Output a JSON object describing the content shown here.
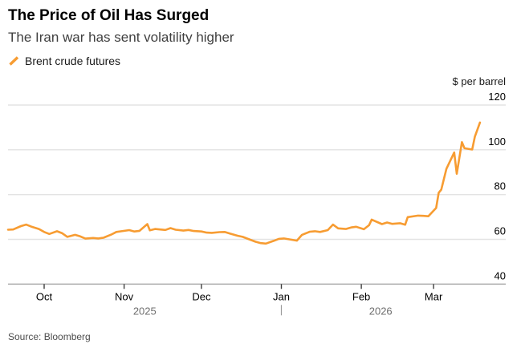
{
  "header": {
    "title": "The Price of Oil Has Surged",
    "subtitle": "The Iran war has sent volatility higher",
    "legend_label": "Brent crude futures"
  },
  "footer": {
    "source": "Source: Bloomberg"
  },
  "chart_data": {
    "type": "line",
    "title": "The Price of Oil Has Surged",
    "subtitle": "The Iran war has sent volatility higher",
    "unit_label": "$ per barrel",
    "ylim": [
      40,
      120
    ],
    "y_ticks": [
      40,
      60,
      80,
      100,
      120
    ],
    "grid": "horizontal",
    "legend_position": "top-left",
    "x_range": [
      "2025-09-17",
      "2026-03-29"
    ],
    "x_ticks": [
      {
        "label": "Oct",
        "date": "2025-10-01"
      },
      {
        "label": "Nov",
        "date": "2025-11-01"
      },
      {
        "label": "Dec",
        "date": "2025-12-01"
      },
      {
        "label": "Jan",
        "date": "2026-01-01"
      },
      {
        "label": "Feb",
        "date": "2026-02-01"
      },
      {
        "label": "Mar",
        "date": "2026-03-01"
      }
    ],
    "year_labels": [
      {
        "label": "2025",
        "from": "2025-09-17",
        "to": "2026-01-01"
      },
      {
        "label": "2026",
        "from": "2026-01-01",
        "to": "2026-03-19"
      }
    ],
    "year_divider_date": "2026-01-01",
    "colors": {
      "line": "#F79C32",
      "grid": "#E3E3E3",
      "axis": "#A9A9A9",
      "tick": "#3C3C3C",
      "tick_label": "#000000",
      "year_label": "#6F6F6F",
      "year_divider": "#9B9B9B"
    },
    "series": [
      {
        "name": "Brent crude futures",
        "color": "#F79C32",
        "points": [
          [
            "2025-09-17",
            64.3
          ],
          [
            "2025-09-19",
            64.4
          ],
          [
            "2025-09-22",
            65.9
          ],
          [
            "2025-09-24",
            66.6
          ],
          [
            "2025-09-26",
            65.7
          ],
          [
            "2025-09-29",
            64.6
          ],
          [
            "2025-10-01",
            63.3
          ],
          [
            "2025-10-03",
            62.4
          ],
          [
            "2025-10-06",
            63.6
          ],
          [
            "2025-10-08",
            62.7
          ],
          [
            "2025-10-10",
            61.1
          ],
          [
            "2025-10-13",
            62.0
          ],
          [
            "2025-10-15",
            61.3
          ],
          [
            "2025-10-17",
            60.3
          ],
          [
            "2025-10-20",
            60.6
          ],
          [
            "2025-10-22",
            60.4
          ],
          [
            "2025-10-24",
            60.7
          ],
          [
            "2025-10-27",
            62.1
          ],
          [
            "2025-10-29",
            63.3
          ],
          [
            "2025-10-31",
            63.6
          ],
          [
            "2025-11-03",
            64.1
          ],
          [
            "2025-11-05",
            63.5
          ],
          [
            "2025-11-07",
            63.8
          ],
          [
            "2025-11-10",
            66.8
          ],
          [
            "2025-11-11",
            64.0
          ],
          [
            "2025-11-13",
            64.6
          ],
          [
            "2025-11-17",
            64.2
          ],
          [
            "2025-11-19",
            65.0
          ],
          [
            "2025-11-21",
            64.3
          ],
          [
            "2025-11-24",
            63.9
          ],
          [
            "2025-11-26",
            64.2
          ],
          [
            "2025-11-28",
            63.7
          ],
          [
            "2025-12-01",
            63.5
          ],
          [
            "2025-12-03",
            63.0
          ],
          [
            "2025-12-05",
            62.9
          ],
          [
            "2025-12-08",
            63.2
          ],
          [
            "2025-12-10",
            63.3
          ],
          [
            "2025-12-12",
            62.6
          ],
          [
            "2025-12-15",
            61.6
          ],
          [
            "2025-12-17",
            61.1
          ],
          [
            "2025-12-19",
            60.2
          ],
          [
            "2025-12-22",
            58.9
          ],
          [
            "2025-12-24",
            58.3
          ],
          [
            "2025-12-26",
            58.1
          ],
          [
            "2025-12-29",
            59.3
          ],
          [
            "2025-12-31",
            60.2
          ],
          [
            "2026-01-02",
            60.4
          ],
          [
            "2026-01-05",
            59.8
          ],
          [
            "2026-01-07",
            59.4
          ],
          [
            "2026-01-09",
            62.0
          ],
          [
            "2026-01-12",
            63.4
          ],
          [
            "2026-01-14",
            63.6
          ],
          [
            "2026-01-16",
            63.3
          ],
          [
            "2026-01-19",
            64.1
          ],
          [
            "2026-01-21",
            66.6
          ],
          [
            "2026-01-23",
            64.9
          ],
          [
            "2026-01-26",
            64.6
          ],
          [
            "2026-01-28",
            65.3
          ],
          [
            "2026-01-30",
            65.6
          ],
          [
            "2026-02-02",
            64.5
          ],
          [
            "2026-02-04",
            66.3
          ],
          [
            "2026-02-05",
            68.8
          ],
          [
            "2026-02-09",
            66.8
          ],
          [
            "2026-02-11",
            67.5
          ],
          [
            "2026-02-13",
            66.9
          ],
          [
            "2026-02-16",
            67.2
          ],
          [
            "2026-02-18",
            66.5
          ],
          [
            "2026-02-19",
            69.9
          ],
          [
            "2026-02-23",
            70.6
          ],
          [
            "2026-02-25",
            70.5
          ],
          [
            "2026-02-27",
            70.3
          ],
          [
            "2026-03-02",
            74.0
          ],
          [
            "2026-03-03",
            80.8
          ],
          [
            "2026-03-04",
            82.2
          ],
          [
            "2026-03-06",
            91.5
          ],
          [
            "2026-03-09",
            98.8
          ],
          [
            "2026-03-10",
            89.3
          ],
          [
            "2026-03-12",
            103.4
          ],
          [
            "2026-03-13",
            100.7
          ],
          [
            "2026-03-16",
            100.1
          ],
          [
            "2026-03-17",
            105.8
          ],
          [
            "2026-03-19",
            112.2
          ]
        ]
      }
    ]
  }
}
